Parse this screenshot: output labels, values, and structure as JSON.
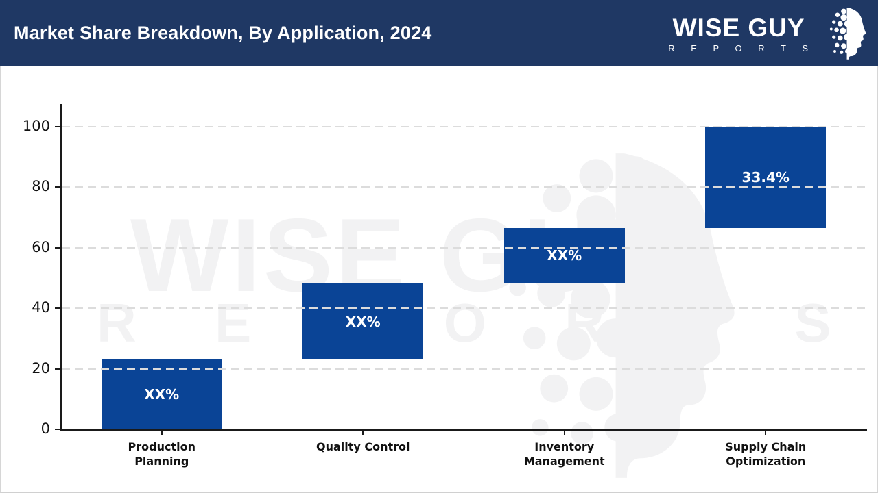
{
  "header": {
    "title": "Market Share Breakdown, By Application, 2024",
    "bg_color": "#1f3864",
    "logo": {
      "name": "WISE GUY",
      "tagline": "R E P O R T S"
    }
  },
  "watermark": {
    "line1": "WISE GUY",
    "line2": "R E P O R T S"
  },
  "chart_data": {
    "type": "bar",
    "subtype": "waterfall",
    "title": "Market Share Breakdown, By Application, 2024",
    "categories": [
      "Production Planning",
      "Quality Control",
      "Inventory Management",
      "Supply Chain Optimization"
    ],
    "category_lines": [
      [
        "Production",
        "Planning"
      ],
      [
        "Quality Control"
      ],
      [
        "Inventory",
        "Management"
      ],
      [
        "Supply Chain",
        "Optimization"
      ]
    ],
    "segments": [
      {
        "category": "Production Planning",
        "start": 0,
        "end": 23.0,
        "value_label": "XX%"
      },
      {
        "category": "Quality Control",
        "start": 23.0,
        "end": 48.2,
        "value_label": "XX%"
      },
      {
        "category": "Inventory Management",
        "start": 48.2,
        "end": 66.6,
        "value_label": "XX%"
      },
      {
        "category": "Supply Chain Optimization",
        "start": 66.6,
        "end": 100,
        "value_label": "33.4%",
        "value": 33.4
      }
    ],
    "yticks": [
      0,
      20,
      40,
      60,
      80,
      100
    ],
    "ylim": [
      0,
      107
    ],
    "xlabel": "",
    "ylabel": "",
    "grid": "horizontal-dashed",
    "legend": "none",
    "bar_color": "#0a4496",
    "bar_label_color": "#ffffff",
    "axis_color": "#1a1a1a"
  }
}
